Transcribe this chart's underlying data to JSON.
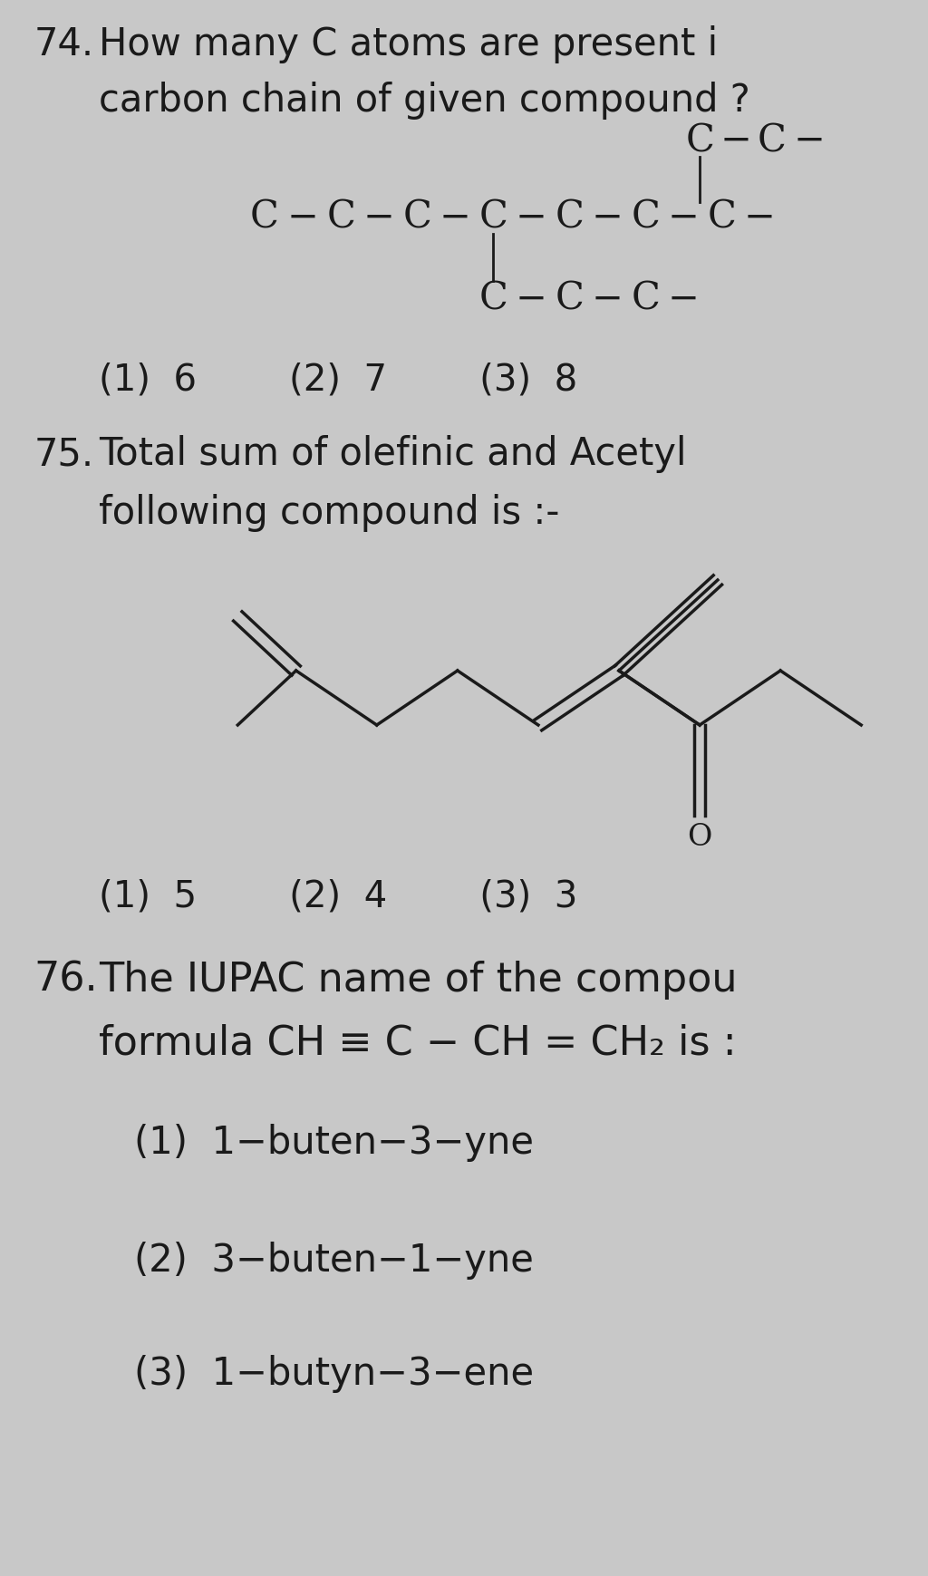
{
  "bg_color": "#c8c8c8",
  "text_color": "#1a1a1a",
  "fig_w": 10.24,
  "fig_h": 17.39,
  "q74_num": "74.",
  "q74_l1": "How many C atoms are present i",
  "q74_l2": "carbon chain of given compound ?",
  "q74_opts": "(1)  6        (2)  7        (3)  8",
  "q75_num": "75.",
  "q75_l1": "Total sum of olefinic and Acetyl",
  "q75_l2": "following compound is :-",
  "q75_opts": "(1)  5        (2)  4        (3)  3",
  "q76_num": "76.",
  "q76_l1": "The IUPAC name of the compou",
  "q76_l2": "formula CH ≡ C − CH = CH₂ is :",
  "q76_opt1": "(1)  1−buten−3−yne",
  "q76_opt2": "(2)  3−buten−1−yne",
  "q76_opt3": "(3)  1−butyn−3−ene"
}
